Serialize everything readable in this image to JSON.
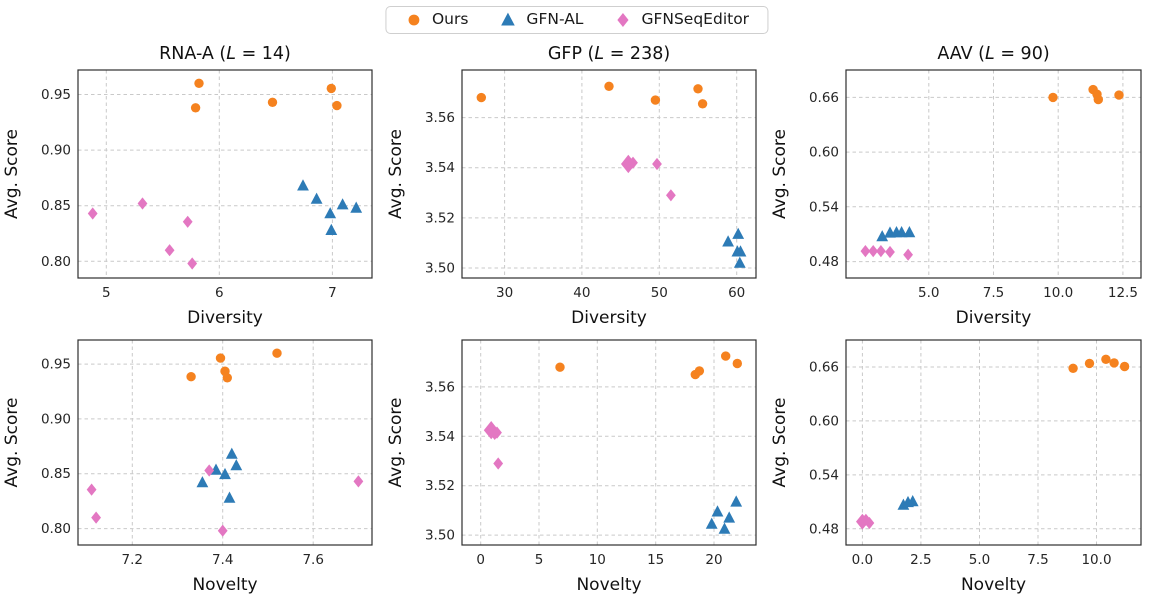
{
  "legend": {
    "items": [
      {
        "label": "Ours",
        "marker": "circle",
        "color": "#f5821f"
      },
      {
        "label": "GFN-AL",
        "marker": "triangle",
        "color": "#2d7bb6"
      },
      {
        "label": "GFNSeqEditor",
        "marker": "diamond",
        "color": "#e377c2"
      }
    ]
  },
  "chart_data": [
    {
      "type": "scatter",
      "title": "RNA-A (L = 14)",
      "xlabel": "Diversity",
      "ylabel": "Avg. Score",
      "xlim": [
        4.75,
        7.35
      ],
      "ylim": [
        0.785,
        0.972
      ],
      "xticks": [
        5,
        6,
        7
      ],
      "xtick_labels": [
        "5",
        "6",
        "7"
      ],
      "yticks": [
        0.8,
        0.85,
        0.9,
        0.95
      ],
      "ytick_labels": [
        "0.80",
        "0.85",
        "0.90",
        "0.95"
      ],
      "grid": true,
      "grid_style": "dashed",
      "series": [
        {
          "name": "Ours",
          "marker": "circle",
          "color": "#f5821f",
          "points": [
            [
              5.82,
              0.96
            ],
            [
              5.79,
              0.938
            ],
            [
              6.47,
              0.943
            ],
            [
              6.99,
              0.9555
            ],
            [
              7.04,
              0.94
            ]
          ]
        },
        {
          "name": "GFN-AL",
          "marker": "triangle",
          "color": "#2d7bb6",
          "points": [
            [
              6.74,
              0.868
            ],
            [
              6.86,
              0.856
            ],
            [
              6.98,
              0.843
            ],
            [
              6.99,
              0.828
            ],
            [
              7.09,
              0.851
            ],
            [
              7.21,
              0.848
            ]
          ]
        },
        {
          "name": "GFNSeqEditor",
          "marker": "diamond",
          "color": "#e377c2",
          "points": [
            [
              4.88,
              0.843
            ],
            [
              5.32,
              0.852
            ],
            [
              5.56,
              0.81
            ],
            [
              5.72,
              0.8355
            ],
            [
              5.76,
              0.798
            ]
          ]
        }
      ]
    },
    {
      "type": "scatter",
      "title": "GFP (L = 238)",
      "xlabel": "Diversity",
      "ylabel": "Avg. Score",
      "xlim": [
        24.5,
        62.5
      ],
      "ylim": [
        3.496,
        3.579
      ],
      "xticks": [
        30,
        40,
        50,
        60
      ],
      "xtick_labels": [
        "30",
        "40",
        "50",
        "60"
      ],
      "yticks": [
        3.5,
        3.52,
        3.54,
        3.56
      ],
      "ytick_labels": [
        "3.50",
        "3.52",
        "3.54",
        "3.56"
      ],
      "grid": true,
      "grid_style": "dashed",
      "series": [
        {
          "name": "Ours",
          "marker": "circle",
          "color": "#f5821f",
          "points": [
            [
              27,
              3.568
            ],
            [
              43.5,
              3.5725
            ],
            [
              49.5,
              3.567
            ],
            [
              55,
              3.5715
            ],
            [
              55.6,
              3.5655
            ]
          ]
        },
        {
          "name": "GFN-AL",
          "marker": "triangle",
          "color": "#2d7bb6",
          "points": [
            [
              58.9,
              3.5105
            ],
            [
              60.2,
              3.5135
            ],
            [
              60.1,
              3.5065
            ],
            [
              60.5,
              3.5065
            ],
            [
              60.4,
              3.502
            ]
          ]
        },
        {
          "name": "GFNSeqEditor",
          "marker": "diamond",
          "color": "#e377c2",
          "points": [
            [
              46,
              3.5415,
              1.5
            ],
            [
              46.6,
              3.542
            ],
            [
              49.7,
              3.5415
            ],
            [
              51.5,
              3.529
            ]
          ]
        }
      ]
    },
    {
      "type": "scatter",
      "title": "AAV (L = 90)",
      "xlabel": "Diversity",
      "ylabel": "Avg. Score",
      "xlim": [
        1.8,
        13.2
      ],
      "ylim": [
        0.462,
        0.69
      ],
      "xticks": [
        5.0,
        7.5,
        10.0,
        12.5
      ],
      "xtick_labels": [
        "5.0",
        "7.5",
        "10.0",
        "12.5"
      ],
      "yticks": [
        0.48,
        0.54,
        0.6,
        0.66
      ],
      "ytick_labels": [
        "0.48",
        "0.54",
        "0.60",
        "0.66"
      ],
      "grid": true,
      "grid_style": "dashed",
      "series": [
        {
          "name": "Ours",
          "marker": "circle",
          "color": "#f5821f",
          "points": [
            [
              9.8,
              0.66
            ],
            [
              11.35,
              0.6685
            ],
            [
              11.5,
              0.6635
            ],
            [
              11.55,
              0.6575
            ],
            [
              12.35,
              0.6625
            ]
          ]
        },
        {
          "name": "GFN-AL",
          "marker": "triangle",
          "color": "#2d7bb6",
          "points": [
            [
              3.2,
              0.5075
            ],
            [
              3.5,
              0.5115
            ],
            [
              3.75,
              0.512
            ],
            [
              3.95,
              0.512
            ],
            [
              4.25,
              0.512
            ]
          ]
        },
        {
          "name": "GFNSeqEditor",
          "marker": "diamond",
          "color": "#e377c2",
          "points": [
            [
              2.55,
              0.4915
            ],
            [
              2.85,
              0.4915
            ],
            [
              3.15,
              0.4915
            ],
            [
              3.5,
              0.4905
            ],
            [
              4.2,
              0.4875
            ]
          ]
        }
      ]
    },
    {
      "type": "scatter",
      "title": "",
      "xlabel": "Novelty",
      "ylabel": "Avg. Score",
      "xlim": [
        7.08,
        7.73
      ],
      "ylim": [
        0.785,
        0.972
      ],
      "xticks": [
        7.2,
        7.4,
        7.6
      ],
      "xtick_labels": [
        "7.2",
        "7.4",
        "7.6"
      ],
      "yticks": [
        0.8,
        0.85,
        0.9,
        0.95
      ],
      "ytick_labels": [
        "0.80",
        "0.85",
        "0.90",
        "0.95"
      ],
      "grid": true,
      "grid_style": "dashed",
      "series": [
        {
          "name": "Ours",
          "marker": "circle",
          "color": "#f5821f",
          "points": [
            [
              7.33,
              0.9385
            ],
            [
              7.395,
              0.9555
            ],
            [
              7.405,
              0.9435
            ],
            [
              7.41,
              0.9375
            ],
            [
              7.52,
              0.96
            ]
          ]
        },
        {
          "name": "GFN-AL",
          "marker": "triangle",
          "color": "#2d7bb6",
          "points": [
            [
              7.355,
              0.842
            ],
            [
              7.385,
              0.8535
            ],
            [
              7.405,
              0.8495
            ],
            [
              7.415,
              0.828
            ],
            [
              7.42,
              0.868
            ],
            [
              7.43,
              0.8575
            ]
          ]
        },
        {
          "name": "GFNSeqEditor",
          "marker": "diamond",
          "color": "#e377c2",
          "points": [
            [
              7.11,
              0.8355
            ],
            [
              7.12,
              0.81
            ],
            [
              7.37,
              0.853
            ],
            [
              7.4,
              0.798
            ],
            [
              7.7,
              0.843
            ]
          ]
        }
      ]
    },
    {
      "type": "scatter",
      "title": "",
      "xlabel": "Novelty",
      "ylabel": "Avg. Score",
      "xlim": [
        -1.6,
        23.6
      ],
      "ylim": [
        3.496,
        3.579
      ],
      "xticks": [
        0,
        5,
        10,
        15,
        20
      ],
      "xtick_labels": [
        "0",
        "5",
        "10",
        "15",
        "20"
      ],
      "yticks": [
        3.5,
        3.52,
        3.54,
        3.56
      ],
      "ytick_labels": [
        "3.50",
        "3.52",
        "3.54",
        "3.56"
      ],
      "grid": true,
      "grid_style": "dashed",
      "series": [
        {
          "name": "Ours",
          "marker": "circle",
          "color": "#f5821f",
          "points": [
            [
              6.8,
              3.568
            ],
            [
              18.4,
              3.565
            ],
            [
              18.75,
              3.5665
            ],
            [
              21.0,
              3.5725
            ],
            [
              22.0,
              3.5695
            ]
          ]
        },
        {
          "name": "GFN-AL",
          "marker": "triangle",
          "color": "#2d7bb6",
          "points": [
            [
              19.8,
              3.5045
            ],
            [
              20.3,
              3.5095
            ],
            [
              21.3,
              3.507
            ],
            [
              21.9,
              3.5135
            ],
            [
              20.9,
              3.5025
            ]
          ]
        },
        {
          "name": "GFNSeqEditor",
          "marker": "diamond",
          "color": "#e377c2",
          "points": [
            [
              0.9,
              3.5425,
              1.5
            ],
            [
              1.2,
              3.541
            ],
            [
              1.4,
              3.5415
            ],
            [
              1.5,
              3.529
            ]
          ]
        }
      ]
    },
    {
      "type": "scatter",
      "title": "",
      "xlabel": "Novelty",
      "ylabel": "Avg. Score",
      "xlim": [
        -0.7,
        11.9
      ],
      "ylim": [
        0.462,
        0.69
      ],
      "xticks": [
        0.0,
        2.5,
        5.0,
        7.5,
        10.0
      ],
      "xtick_labels": [
        "0.0",
        "2.5",
        "5.0",
        "7.5",
        "10.0"
      ],
      "yticks": [
        0.48,
        0.54,
        0.6,
        0.66
      ],
      "ytick_labels": [
        "0.48",
        "0.54",
        "0.60",
        "0.66"
      ],
      "grid": true,
      "grid_style": "dashed",
      "series": [
        {
          "name": "Ours",
          "marker": "circle",
          "color": "#f5821f",
          "points": [
            [
              9.0,
              0.6585
            ],
            [
              9.7,
              0.664
            ],
            [
              10.4,
              0.6685
            ],
            [
              10.75,
              0.6645
            ],
            [
              11.2,
              0.6605
            ]
          ]
        },
        {
          "name": "GFN-AL",
          "marker": "triangle",
          "color": "#2d7bb6",
          "points": [
            [
              1.75,
              0.5065
            ],
            [
              1.95,
              0.5095
            ],
            [
              2.15,
              0.5105
            ]
          ]
        },
        {
          "name": "GFNSeqEditor",
          "marker": "diamond",
          "color": "#e377c2",
          "points": [
            [
              0.0,
              0.488,
              1.3
            ],
            [
              0.15,
              0.49
            ],
            [
              0.3,
              0.4865
            ]
          ]
        }
      ]
    }
  ]
}
